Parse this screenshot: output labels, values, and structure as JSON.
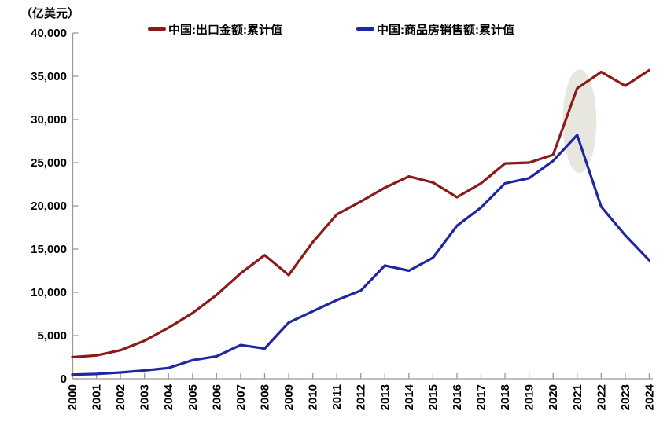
{
  "chart_data": {
    "type": "line",
    "unit_label": "（亿美元）",
    "x": [
      2000,
      2001,
      2002,
      2003,
      2004,
      2005,
      2006,
      2007,
      2008,
      2009,
      2010,
      2011,
      2012,
      2013,
      2014,
      2015,
      2016,
      2017,
      2018,
      2019,
      2020,
      2021,
      2022,
      2023,
      2024
    ],
    "series": [
      {
        "name": "中国:出口金额:累计值",
        "color": "#8b1a1a",
        "values": [
          2500,
          2700,
          3300,
          4400,
          5900,
          7600,
          9700,
          12200,
          14300,
          12000,
          15800,
          19000,
          20500,
          22100,
          23400,
          22700,
          21000,
          22600,
          24900,
          25000,
          25900,
          33600,
          35500,
          33900,
          35700
        ]
      },
      {
        "name": "中国:商品房销售额:累计值",
        "color": "#1f27a0",
        "values": [
          475,
          560,
          730,
          960,
          1250,
          2150,
          2600,
          3900,
          3500,
          6500,
          7800,
          9100,
          10200,
          13100,
          12500,
          14000,
          17700,
          19800,
          22600,
          23200,
          25200,
          28200,
          19900,
          16600,
          13700
        ]
      }
    ],
    "y_axis": {
      "min": 0,
      "max": 40000,
      "step": 5000,
      "tick_format": "thousands-comma"
    },
    "x_axis": {
      "tick_labels_rotated": true
    },
    "legend_position": "top",
    "grid": "off",
    "axis_color": "#999999",
    "annotations": [
      {
        "type": "ellipse-highlight",
        "x_year": 2021.1,
        "y_value": 29800,
        "x_radius_years": 0.7,
        "y_radius_value": 6000,
        "color": "#e4e4dc"
      }
    ]
  }
}
